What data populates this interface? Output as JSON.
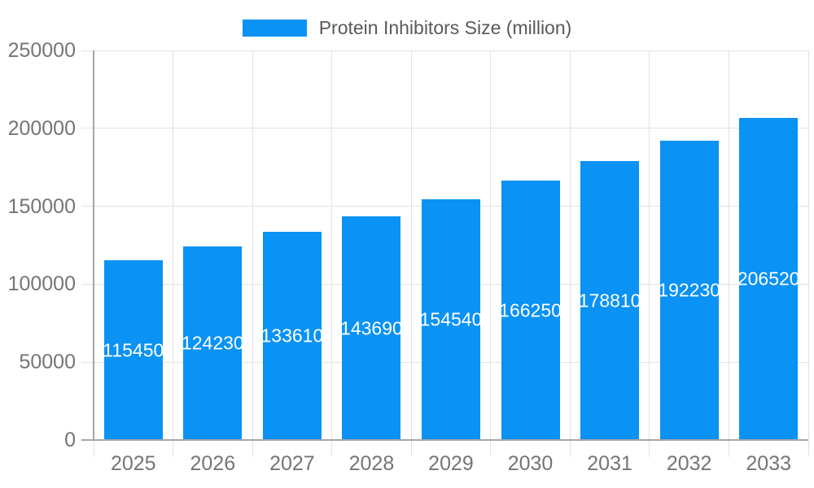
{
  "chart_data": {
    "type": "bar",
    "title": "Protein Inhibitors Size (million)",
    "legend_position": "top",
    "categories": [
      "2025",
      "2026",
      "2027",
      "2028",
      "2029",
      "2030",
      "2031",
      "2032",
      "2033"
    ],
    "series": [
      {
        "name": "Protein Inhibitors Size (million)",
        "values": [
          115450,
          124230,
          133610,
          143690,
          154540,
          166250,
          178810,
          192230,
          206520
        ]
      }
    ],
    "bar_value_labels": [
      "115450",
      "124230",
      "133610",
      "143690",
      "154540",
      "166250",
      "178810",
      "192230",
      "206520"
    ],
    "xlabel": "",
    "ylabel": "",
    "ylim": [
      0,
      250000
    ],
    "y_ticks": [
      0,
      50000,
      100000,
      150000,
      200000,
      250000
    ],
    "y_tick_labels": [
      "0",
      "50000",
      "100000",
      "150000",
      "200000",
      "250000"
    ],
    "grid": true
  },
  "colors": {
    "bar": "#0a92f4",
    "bar_label_text": "#ffffff",
    "grid_line": "#e2e2e2",
    "axis_line": "#a6a6a6",
    "axis_tick_text": "#757575",
    "legend_text": "#58595b",
    "background": "#ffffff"
  }
}
